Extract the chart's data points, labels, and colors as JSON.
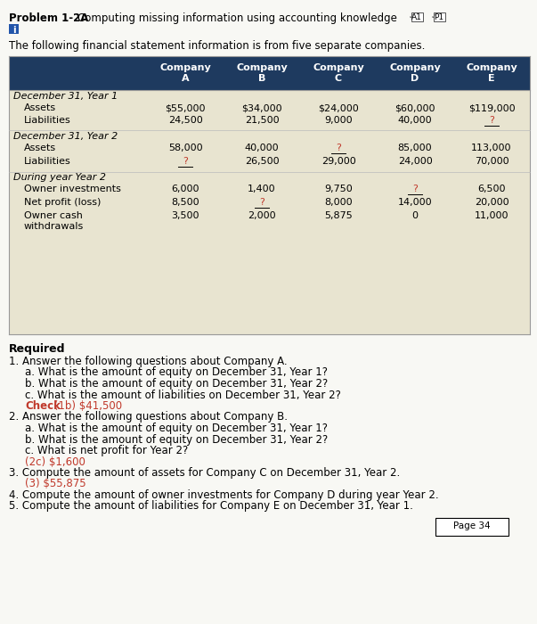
{
  "title_bold": "Problem 1-2A",
  "title_normal": " Computing missing information using accounting knowledge ",
  "header_bg": "#1e3a5f",
  "header_text_color": "#ffffff",
  "table_bg": "#e8e4d0",
  "border_color": "#999999",
  "companies": [
    "Company\nA",
    "Company\nB",
    "Company\nC",
    "Company\nD",
    "Company\nE"
  ],
  "row_labels": [
    "December 31, Year 1",
    "Assets",
    "Liabilities",
    "December 31, Year 2",
    "Assets",
    "Liabilities",
    "During year Year 2",
    "Owner investments",
    "Net profit (loss)",
    "Owner cash\nwithdrawals"
  ],
  "row_is_section": [
    true,
    false,
    false,
    true,
    false,
    false,
    true,
    false,
    false,
    false
  ],
  "data": [
    [
      "",
      "",
      "",
      "",
      ""
    ],
    [
      "$55,000",
      "$34,000",
      "$24,000",
      "$60,000",
      "$119,000"
    ],
    [
      "24,500",
      "21,500",
      "9,000",
      "40,000",
      "?"
    ],
    [
      "",
      "",
      "",
      "",
      ""
    ],
    [
      "58,000",
      "40,000",
      "?",
      "85,000",
      "113,000"
    ],
    [
      "?",
      "26,500",
      "29,000",
      "24,000",
      "70,000"
    ],
    [
      "",
      "",
      "",
      "",
      ""
    ],
    [
      "6,000",
      "1,400",
      "9,750",
      "?",
      "6,500"
    ],
    [
      "8,500",
      "?",
      "8,000",
      "14,000",
      "20,000"
    ],
    [
      "3,500",
      "2,000",
      "5,875",
      "0",
      "11,000"
    ]
  ],
  "question_marks_underlined": [
    [
      2,
      4
    ],
    [
      4,
      2
    ],
    [
      5,
      0
    ],
    [
      7,
      3
    ],
    [
      8,
      1
    ]
  ],
  "required_text": "Required",
  "questions": [
    {
      "text": "1. Answer the following questions about Company A.",
      "indent": 0,
      "color": "black"
    },
    {
      "text": "a. What is the amount of equity on December 31, Year 1?",
      "indent": 1,
      "color": "black"
    },
    {
      "text": "b. What is the amount of equity on December 31, Year 2?",
      "indent": 1,
      "color": "black"
    },
    {
      "text": "c. What is the amount of liabilities on December 31, Year 2?",
      "indent": 1,
      "color": "black"
    },
    {
      "text": "Check (1b) $41,500",
      "indent": 1,
      "color": "red",
      "bold_prefix": "Check"
    },
    {
      "text": "2. Answer the following questions about Company B.",
      "indent": 0,
      "color": "black"
    },
    {
      "text": "a. What is the amount of equity on December 31, Year 1?",
      "indent": 1,
      "color": "black"
    },
    {
      "text": "b. What is the amount of equity on December 31, Year 2?",
      "indent": 1,
      "color": "black"
    },
    {
      "text": "c. What is net profit for Year 2?",
      "indent": 1,
      "color": "black"
    },
    {
      "text": "(2c) $1,600",
      "indent": 1,
      "color": "red"
    },
    {
      "text": "3. Compute the amount of assets for Company C on December 31, Year 2.",
      "indent": 0,
      "color": "black"
    },
    {
      "text": "(3) $55,875",
      "indent": 1,
      "color": "red"
    },
    {
      "text": "4. Compute the amount of owner investments for Company D during year Year 2.",
      "indent": 0,
      "color": "black"
    },
    {
      "text": "5. Compute the amount of liabilities for Company E on December 31, Year 1.",
      "indent": 0,
      "color": "black"
    }
  ],
  "check_color": "#c0392b",
  "page_text": "Page 34",
  "background_color": "#f0ede0"
}
